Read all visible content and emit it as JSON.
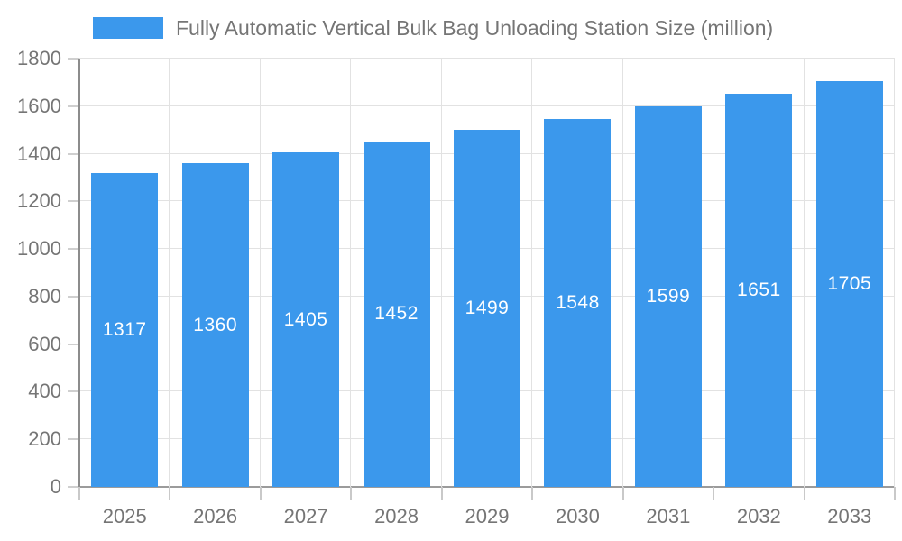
{
  "chart_data": {
    "type": "bar",
    "title": "Fully Automatic Vertical Bulk Bag Unloading Station Size (million)",
    "categories": [
      "2025",
      "2026",
      "2027",
      "2028",
      "2029",
      "2030",
      "2031",
      "2032",
      "2033"
    ],
    "values": [
      1317,
      1360,
      1405,
      1452,
      1499,
      1548,
      1599,
      1651,
      1705
    ],
    "xlabel": "",
    "ylabel": "",
    "ylim": [
      0,
      1800
    ],
    "ytick_step": 200,
    "grid": true,
    "legend_position": "top",
    "bar_labels_inside": true
  },
  "colors": {
    "bar": "#3B98EC",
    "bar_label": "#FFFFFF",
    "axis_text": "#757575",
    "legend_text": "#757575",
    "gridline": "#E2E2E2",
    "axis_line": "#9B9B9B"
  }
}
